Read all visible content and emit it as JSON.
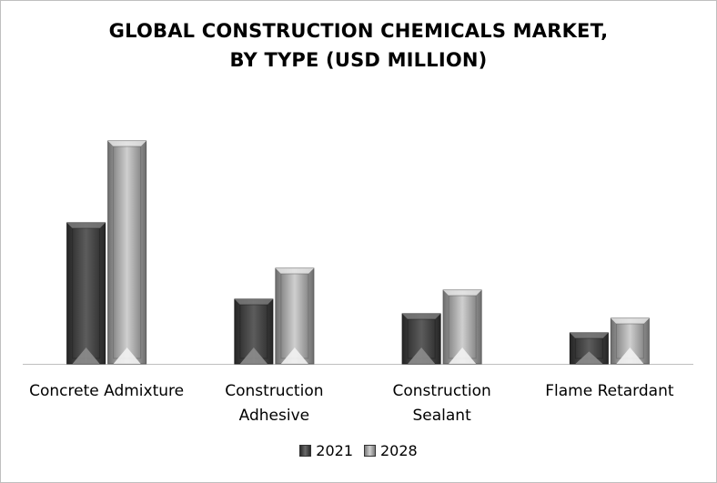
{
  "chart_data": {
    "type": "bar",
    "title_line1": "GLOBAL CONSTRUCTION CHEMICALS MARKET,",
    "title_line2": "BY TYPE (USD MILLION)",
    "categories": [
      "Concrete Admixture",
      "Construction Adhesive",
      "Construction Sealant",
      "Flame Retardant"
    ],
    "category_lines": [
      [
        "Concrete Admixture"
      ],
      [
        "Construction",
        "Adhesive"
      ],
      [
        "Construction",
        "Sealant"
      ],
      [
        "Flame Retardant"
      ]
    ],
    "series": [
      {
        "name": "2021",
        "values": [
          155,
          71,
          55,
          34
        ],
        "color": "#4a4a4a"
      },
      {
        "name": "2028",
        "values": [
          245,
          105,
          81,
          50
        ],
        "color": "#a6a6a6"
      }
    ],
    "ylim": [
      0,
      260
    ],
    "legend_position": "bottom",
    "grid": false
  }
}
